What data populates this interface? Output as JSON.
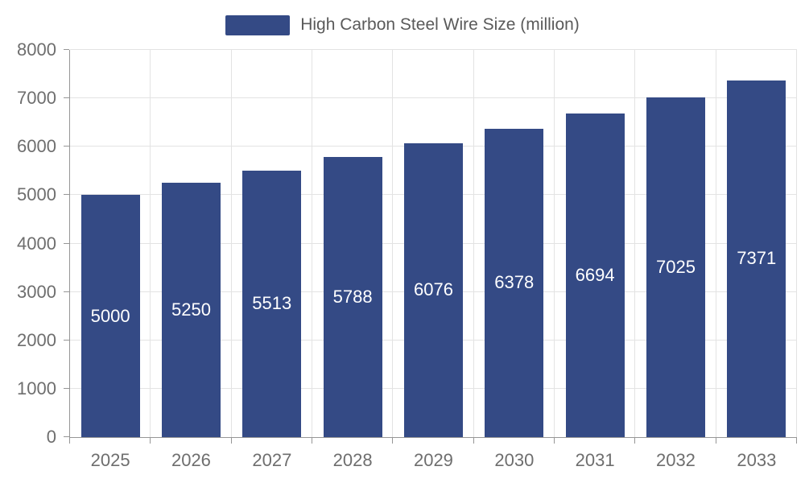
{
  "colors": {
    "bar": "#344a85",
    "grid": "#e3e3e3",
    "axis": "#969696",
    "tick_text": "#6e6e6e",
    "legend_text": "#5a5a5a",
    "bar_label_text": "#ffffff",
    "background": "#ffffff"
  },
  "legend": {
    "label": "High Carbon Steel Wire Size (million)"
  },
  "chart_data": {
    "type": "bar",
    "title": "High Carbon Steel Wire Size (million)",
    "categories": [
      "2025",
      "2026",
      "2027",
      "2028",
      "2029",
      "2030",
      "2031",
      "2032",
      "2033"
    ],
    "series": [
      {
        "name": "High Carbon Steel Wire Size (million)",
        "values": [
          5000,
          5250,
          5513,
          5788,
          6076,
          6378,
          6694,
          7025,
          7371
        ]
      }
    ],
    "xlabel": "",
    "ylabel": "",
    "ylim": [
      0,
      8000
    ],
    "y_tick_interval": 1000,
    "y_ticks": [
      0,
      1000,
      2000,
      3000,
      4000,
      5000,
      6000,
      7000,
      8000
    ],
    "grid": true,
    "legend_position": "top",
    "bar_labels_visible": true,
    "bar_label_position": "inside-center"
  }
}
